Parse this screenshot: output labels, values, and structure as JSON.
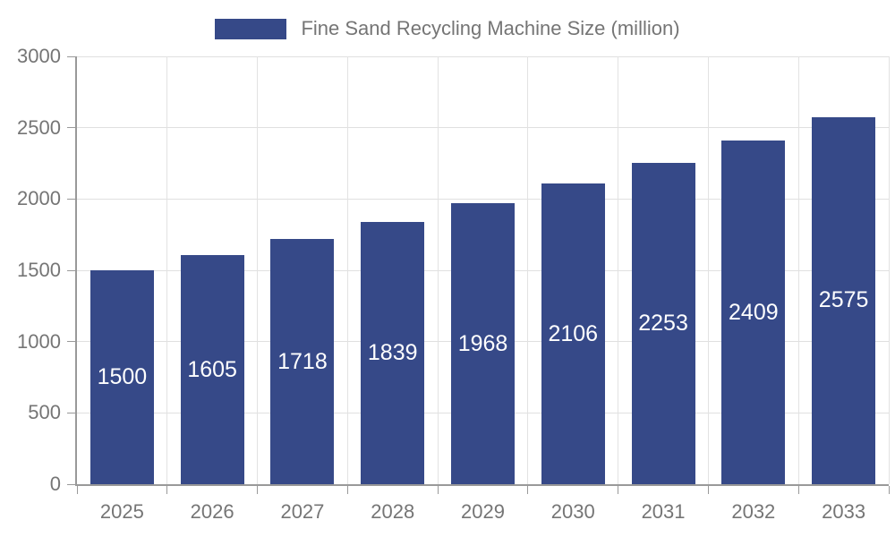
{
  "legend": {
    "label": "Fine Sand Recycling Machine Size (million)"
  },
  "colors": {
    "bar": "#364988",
    "axis_line": "#999999",
    "grid_line": "#e0e0e0",
    "tick_label": "#757575",
    "legend_text": "#757575",
    "value_label": "#ffffff",
    "background": "#ffffff"
  },
  "chart_data": {
    "type": "bar",
    "title": "Fine Sand Recycling Machine Size (million)",
    "categories": [
      "2025",
      "2026",
      "2027",
      "2028",
      "2029",
      "2030",
      "2031",
      "2032",
      "2033"
    ],
    "series": [
      {
        "name": "Fine Sand Recycling Machine Size (million)",
        "values": [
          1500,
          1605,
          1718,
          1839,
          1968,
          2106,
          2253,
          2409,
          2575
        ]
      }
    ],
    "xlabel": "",
    "ylabel": "",
    "ylim": [
      0,
      3000
    ],
    "yticks": [
      0,
      500,
      1000,
      1500,
      2000,
      2500,
      3000
    ],
    "grid": true,
    "legend_position": "top-center",
    "value_labels": "inside-center"
  }
}
